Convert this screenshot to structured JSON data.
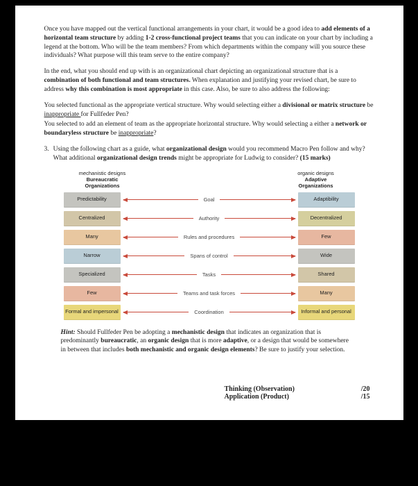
{
  "para1": {
    "t1": "Once you have mapped out the vertical functional arrangements in your chart, it would be a good idea to ",
    "b1": "add elements of a horizontal team structure",
    "t2": " by adding ",
    "b2": "1-2 cross-functional project teams",
    "t3": " that you can indicate on your chart by including a legend at the bottom. Who will be the team members? From which departments within the company will you source these individuals? What purpose will this team serve to the entire company?"
  },
  "para2": {
    "t1": "In the end, what you should end up with is an organizational chart depicting an organizational structure that is a ",
    "b1": "combination of both functional and team structures.",
    "t2": " When explanation and justifying your revised chart, be sure to address ",
    "b2": "why this combination is most appropriate",
    "t3": " in this case. Also, be sure to also address the following:"
  },
  "para3": {
    "t1": "You selected functional as the appropriate vertical structure. Why would selecting either a ",
    "b1": "divisional or matrix structure",
    "t2": " be ",
    "u1": "inappropriate ",
    "t3": "for Fullfeder Pen?"
  },
  "para4": {
    "t1": "You selected to add an element of team as the appropriate horizontal structure. Why would selecting a either a ",
    "b1": "network or boundaryless structure",
    "t2": " be ",
    "u1": "inappropriate",
    "t3": "?"
  },
  "q3": {
    "num": "3.",
    "t1": "Using the following chart as a guide, what ",
    "b1": "organizational design",
    "t2": " would you recommend Macro Pen follow and why? What additional ",
    "b2": "organizational design trends",
    "t3": " might be appropriate for Ludwig to consider? ",
    "b3": "(15 marks)"
  },
  "diagram": {
    "left_header_top": "mechanistic designs",
    "left_header_b1": "Bureaucratic",
    "left_header_b2": "Organizations",
    "right_header_top": "organic designs",
    "right_header_b1": "Adaptive",
    "right_header_b2": "Organizations",
    "colors": {
      "c_gray": "#c4c4bf",
      "c_tan": "#d2c6a8",
      "c_peach": "#e8c7a0",
      "c_blue": "#bacdd6",
      "c_khaki": "#d5cf9e",
      "c_salmon": "#e7b7a0",
      "c_yellow": "#e8d77a",
      "arrow": "#c94a3b"
    },
    "rows": [
      {
        "left": "Predictability",
        "mid": "Goal",
        "right": "Adaptibility",
        "lc": "c_gray",
        "rc": "c_blue"
      },
      {
        "left": "Centralized",
        "mid": "Authority",
        "right": "Decentralized",
        "lc": "c_tan",
        "rc": "c_khaki"
      },
      {
        "left": "Many",
        "mid": "Rules and procedures",
        "right": "Few",
        "lc": "c_peach",
        "rc": "c_salmon"
      },
      {
        "left": "Narrow",
        "mid": "Spans of control",
        "right": "Wide",
        "lc": "c_blue",
        "rc": "c_gray"
      },
      {
        "left": "Specialized",
        "mid": "Tasks",
        "right": "Shared",
        "lc": "c_gray",
        "rc": "c_tan"
      },
      {
        "left": "Few",
        "mid": "Teams and task forces",
        "right": "Many",
        "lc": "c_salmon",
        "rc": "c_peach"
      },
      {
        "left": "Formal and impersonal",
        "mid": "Coordination",
        "right": "Informal and personal",
        "lc": "c_yellow",
        "rc": "c_yellow"
      }
    ]
  },
  "hint": {
    "b0": "Hint:",
    "t1": " Should Fullfeder Pen be adopting a ",
    "b1": "mechanistic design",
    "t2": " that indicates an organization that is predominantly ",
    "b2": "bureaucratic",
    "t3": ", an ",
    "b3": "organic design",
    "t4": " that is more ",
    "b4": "adaptive",
    "t5": ", or a design that would be somewhere in between that includes ",
    "b5": "both mechanistic and organic design elements",
    "t6": "? Be sure to justify your selection."
  },
  "rubric": {
    "r1_label": "Thinking (Observation)",
    "r1_score": "/20",
    "r2_label": "Application (Product)",
    "r2_score": "/15"
  }
}
